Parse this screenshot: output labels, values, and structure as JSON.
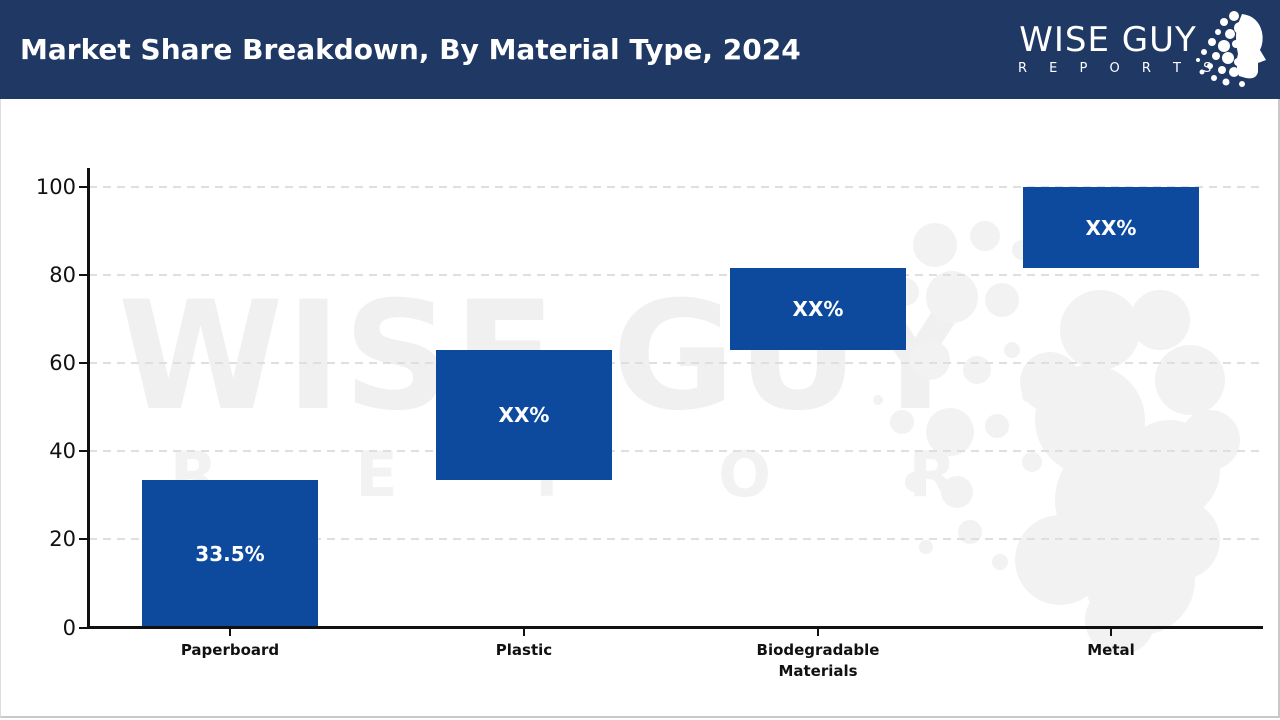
{
  "header": {
    "title": "Market Share Breakdown, By Material Type, 2024",
    "logo": {
      "name_top": "WISE GUY",
      "name_bottom": "R E P O R T S"
    }
  },
  "watermark": {
    "line1": "WISE GUY",
    "line2": "R E P O R T S"
  },
  "colors": {
    "header_bg": "#1f3864",
    "bar_fill": "#0d4a9e",
    "grid_line": "#dfdfdf",
    "axis": "#111111",
    "watermark_gray": "#f0f0f0"
  },
  "chart_data": {
    "type": "bar",
    "variant": "floating-segment-waterfall",
    "title": "Market Share Breakdown, By Material Type, 2024",
    "categories": [
      "Paperboard",
      "Plastic",
      "Biodegradable Materials",
      "Metal"
    ],
    "series": [
      {
        "name": "Market share",
        "segments": [
          {
            "category": "Paperboard",
            "start": 0,
            "end": 33.5,
            "label": "33.5%"
          },
          {
            "category": "Plastic",
            "start": 33.5,
            "end": 63,
            "label": "XX%"
          },
          {
            "category": "Biodegradable Materials",
            "start": 63,
            "end": 81.5,
            "label": "XX%"
          },
          {
            "category": "Metal",
            "start": 81.5,
            "end": 100,
            "label": "XX%"
          }
        ]
      }
    ],
    "yticks": [
      0,
      20,
      40,
      60,
      80,
      100
    ],
    "ylim": [
      0,
      104
    ],
    "xlabel": "",
    "ylabel": "",
    "grid": "horizontal-dashed",
    "legend": "none"
  }
}
